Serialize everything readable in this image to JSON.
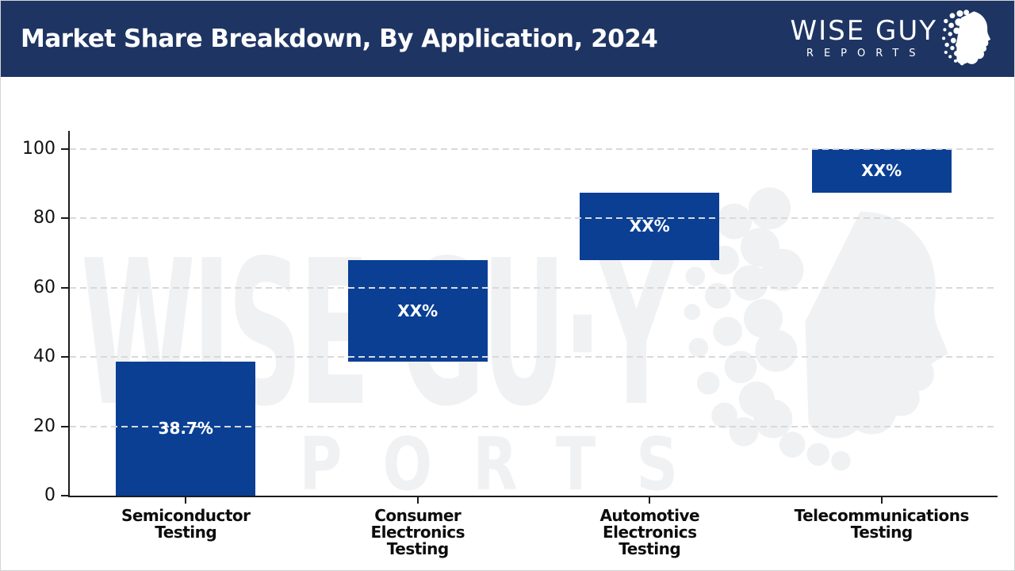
{
  "header": {
    "title": "Market Share Breakdown, By Application, 2024",
    "logo": {
      "name": "WISE GUY",
      "sub": "REPORTS"
    }
  },
  "watermark": {
    "line1": "WISE GU·Y",
    "line2": "REPORTS"
  },
  "chart_data": {
    "type": "bar",
    "subtype": "waterfall",
    "title": "Market Share Breakdown, By Application, 2024",
    "xlabel": "",
    "ylabel": "",
    "ylim": [
      0,
      100
    ],
    "y_ticks": [
      0,
      20,
      40,
      60,
      80,
      100
    ],
    "grid": "horizontal-dashed",
    "legend": "none",
    "bar_color": "#0a3f94",
    "categories": [
      "Semiconductor Testing",
      "Consumer Electronics Testing",
      "Automotive Electronics Testing",
      "Telecommunications Testing"
    ],
    "segments": [
      {
        "category": "Semiconductor Testing",
        "lines": [
          "Semiconductor",
          "Testing"
        ],
        "start": 0,
        "end": 38.7,
        "value": 38.7,
        "label": "38.7%"
      },
      {
        "category": "Consumer Electronics Testing",
        "lines": [
          "Consumer",
          "Electronics",
          "Testing"
        ],
        "start": 38.7,
        "end": 68,
        "value": 29.3,
        "label": "XX%"
      },
      {
        "category": "Automotive Electronics Testing",
        "lines": [
          "Automotive",
          "Electronics",
          "Testing"
        ],
        "start": 68,
        "end": 87.3,
        "value": 19.3,
        "label": "XX%"
      },
      {
        "category": "Telecommunications Testing",
        "lines": [
          "Telecommunications",
          "Testing"
        ],
        "start": 87.3,
        "end": 100,
        "value": 12.7,
        "label": "XX%"
      }
    ]
  },
  "colors": {
    "header_bg": "#1e3563",
    "bar": "#0a3f94",
    "grid": "#d9d9d9",
    "axis": "#1c1c1c",
    "watermark": "#f0f1f3"
  }
}
